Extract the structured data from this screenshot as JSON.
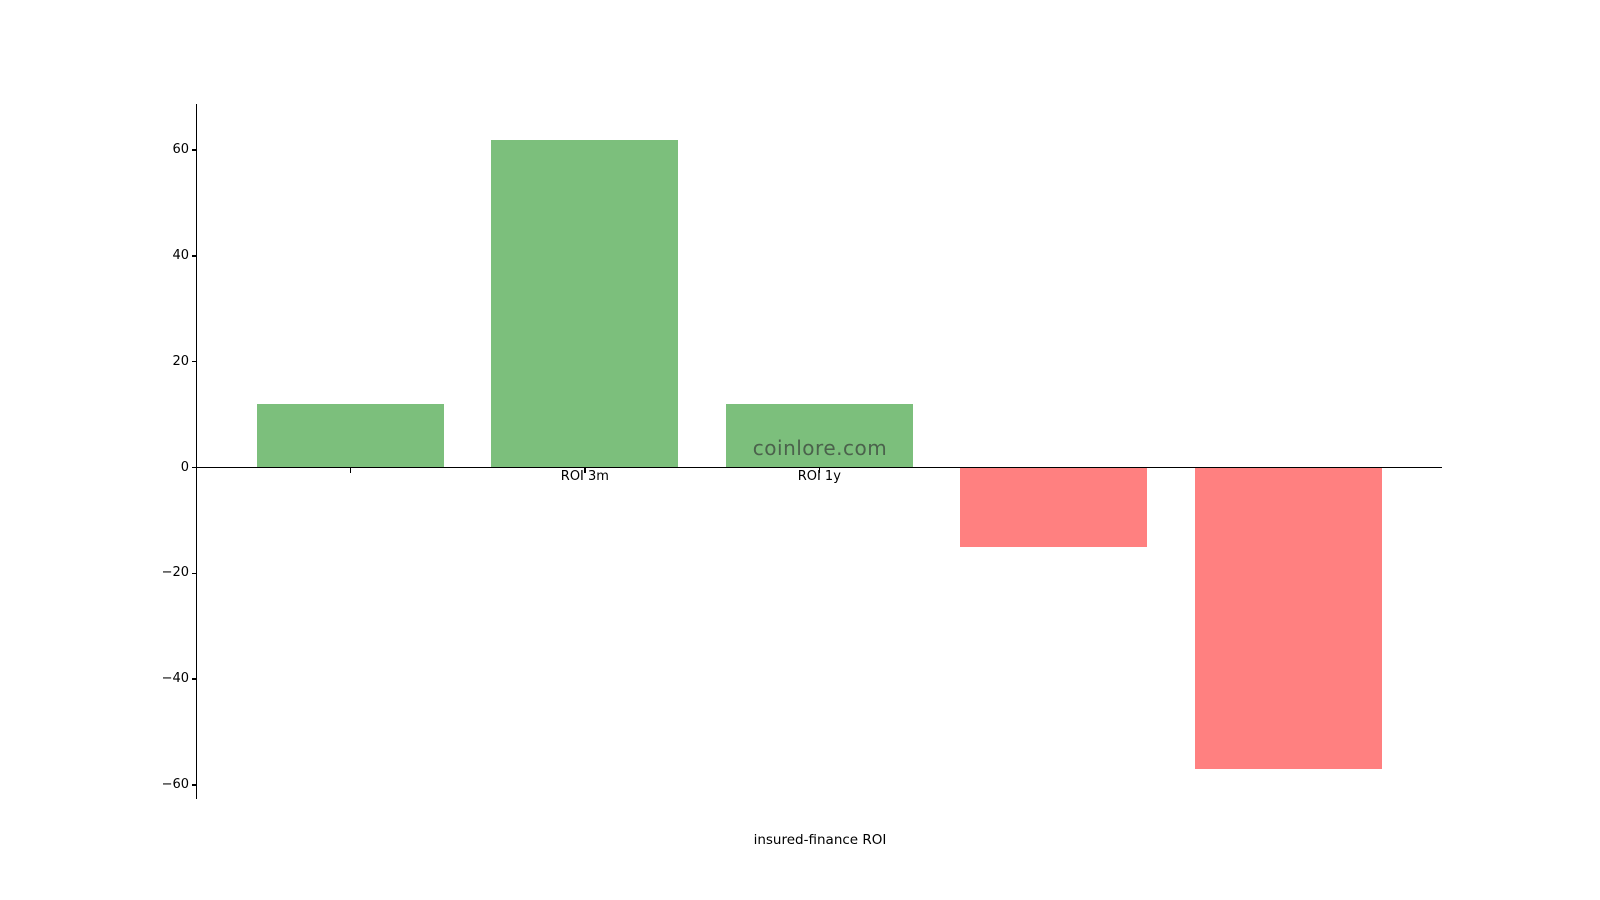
{
  "page": {
    "background_color": "#ffffff"
  },
  "watermark": {
    "text": "coinlore.com",
    "color": "#4b624c"
  },
  "chart_data": {
    "type": "bar",
    "title": "insured-finance ROI",
    "title_position": "bottom-center",
    "categories": [
      "",
      "ROI 3m",
      "ROI 1y",
      "",
      ""
    ],
    "values": [
      12,
      62,
      12,
      -15,
      -57
    ],
    "yticks": [
      60,
      40,
      20,
      0,
      -20,
      -40,
      -60
    ],
    "ylim": [
      -63,
      68
    ],
    "xlabel": "",
    "ylabel": "",
    "grid": false,
    "legend": "none",
    "positive_color": "#7cbf7c",
    "negative_color": "#ff8080",
    "axis_color": "#000000",
    "tick_label_color": "#000000"
  }
}
